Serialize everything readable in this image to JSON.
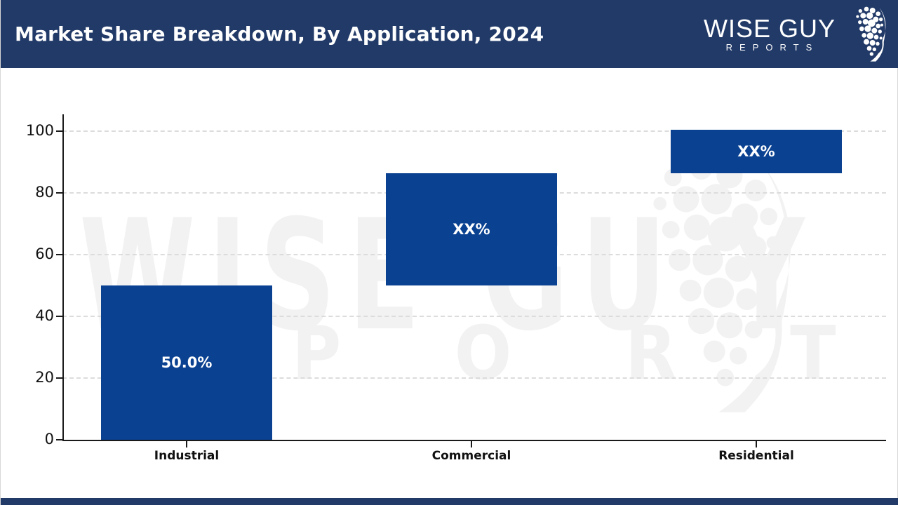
{
  "header": {
    "title": "Market Share Breakdown, By Application, 2024",
    "logo": {
      "line1": "WISE GUY",
      "line2": "REPORTS"
    }
  },
  "watermark": {
    "line1": "WISE GU Y",
    "line2": "P O R T S"
  },
  "chart_data": {
    "type": "bar",
    "subtype": "waterfall-stacked-percentage",
    "title": "Market Share Breakdown, By Application, 2024",
    "categories": [
      "Industrial",
      "Commercial",
      "Residential"
    ],
    "segments": [
      {
        "category": "Industrial",
        "start": 0,
        "end": 50,
        "value_label": "50.0%",
        "estimated_value": 50.0
      },
      {
        "category": "Commercial",
        "start": 50,
        "end": 86.4,
        "value_label": "XX%",
        "estimated_value": 36.4
      },
      {
        "category": "Residential",
        "start": 86.4,
        "end": 100.4,
        "value_label": "XX%",
        "estimated_value": 14.0
      }
    ],
    "xlabel": "",
    "ylabel": "",
    "ylim": [
      0,
      105.5
    ],
    "yticks": [
      0,
      20,
      40,
      60,
      80,
      100
    ],
    "grid": "horizontal-dashed",
    "legend": "none",
    "bar_color": "#0a4191",
    "bar_label_color": "#ffffff"
  },
  "colors": {
    "header_bg": "#223a68",
    "footer_bg": "#223a68",
    "bar": "#0a4191",
    "grid": "#dcdcdc",
    "axis": "#1a1a1a",
    "watermark": "#f2f2f2",
    "title_text": "#ffffff"
  }
}
